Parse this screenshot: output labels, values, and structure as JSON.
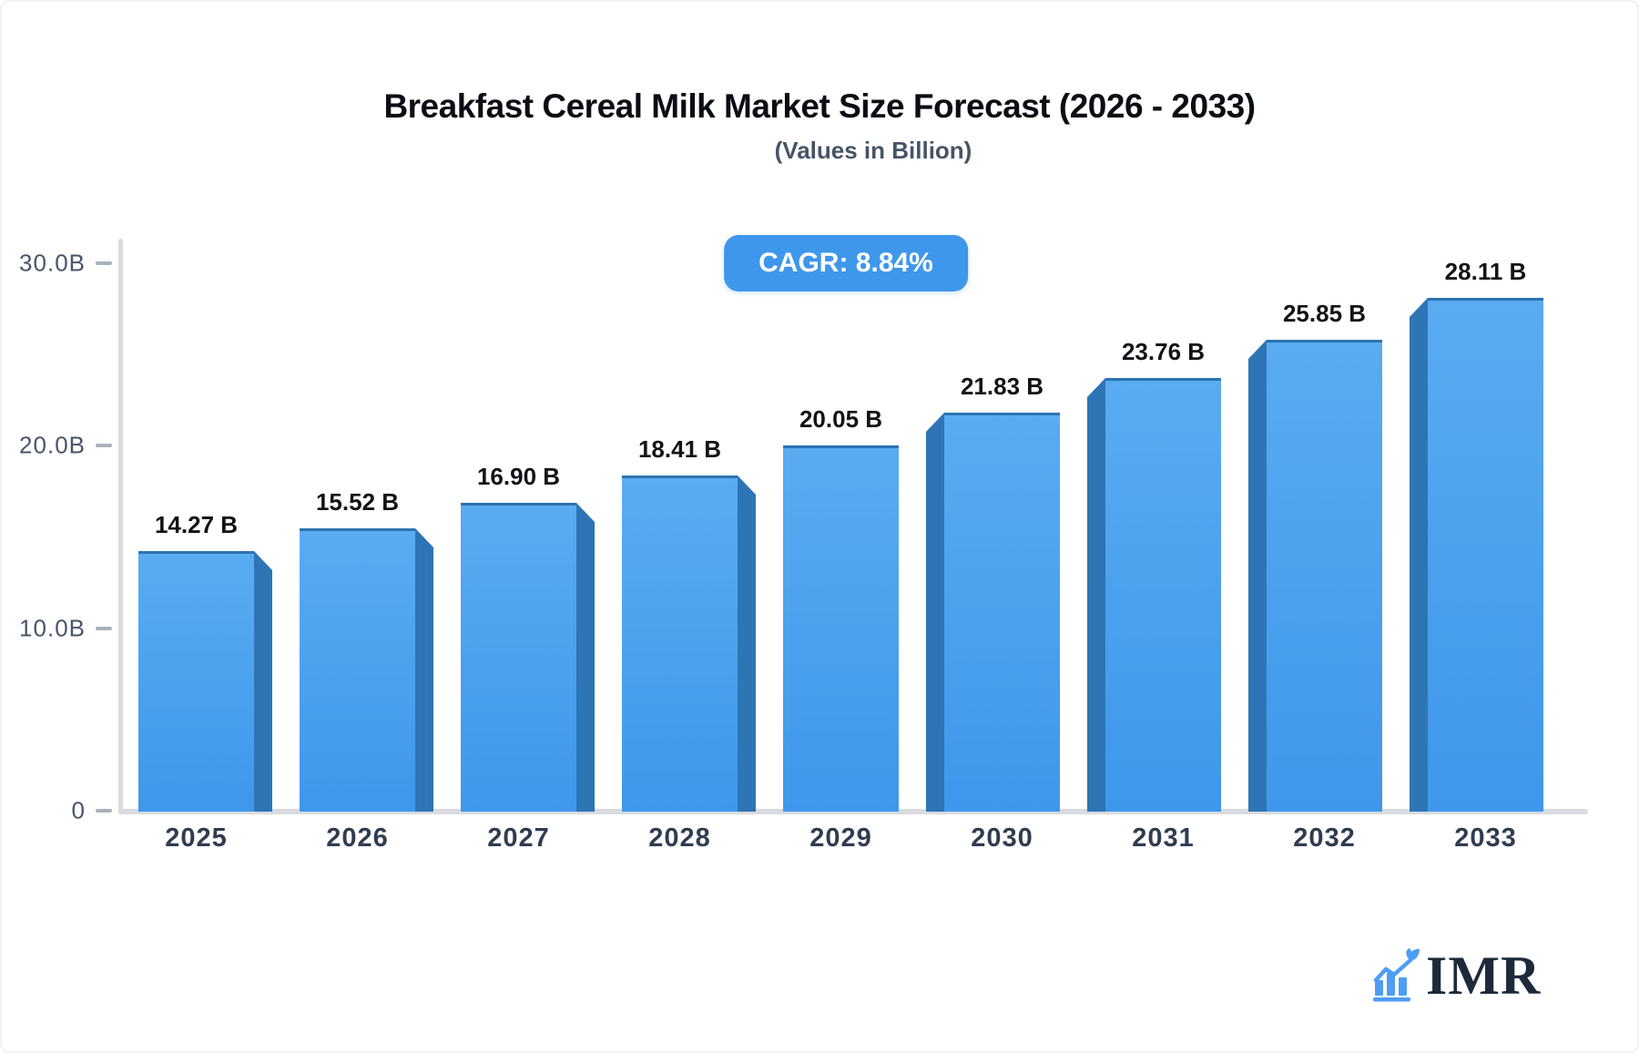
{
  "header": {
    "title": "Breakfast Cereal Milk Market Size Forecast (2026 - 2033)",
    "subtitle": "(Values in Billion)"
  },
  "badge": {
    "label": "CAGR: 8.84%",
    "bg_color": "#3e97eb",
    "text_color": "#ffffff"
  },
  "chart_data": {
    "type": "bar",
    "title": "Breakfast Cereal Milk Market Size Forecast (2026 - 2033)",
    "subtitle": "(Values in Billion)",
    "annotation": "CAGR: 8.84%",
    "categories": [
      "2025",
      "2026",
      "2027",
      "2028",
      "2029",
      "2030",
      "2031",
      "2032",
      "2033"
    ],
    "values": [
      14.27,
      15.52,
      16.9,
      18.41,
      20.05,
      21.83,
      23.76,
      25.85,
      28.11
    ],
    "value_labels": [
      "14.27 B",
      "15.52 B",
      "16.90 B",
      "18.41 B",
      "20.05 B",
      "21.83 B",
      "23.76 B",
      "25.85 B",
      "28.11 B"
    ],
    "unit": "Billion",
    "xlabel": "",
    "ylabel": "",
    "ylim": [
      0,
      30
    ],
    "y_ticks": [
      {
        "label": "30.0B",
        "value": 30
      },
      {
        "label": "20.0B",
        "value": 20
      },
      {
        "label": "10.0B",
        "value": 10
      },
      {
        "label": "0",
        "value": 0
      }
    ],
    "grid": false,
    "legend": "none",
    "style_3d": true,
    "bar_front_color_top": "#5aabf0",
    "bar_front_color_bottom": "#3e97ec",
    "bar_side_color": "#2d75b5",
    "bar_top_edge_color": "#2c73b2",
    "axis_color": "#d9dbe0"
  },
  "logo": {
    "text": "IMR",
    "icon": "bar-chart-leaf-icon",
    "icon_color": "#4f9df3",
    "text_color": "#1d2a3a"
  }
}
